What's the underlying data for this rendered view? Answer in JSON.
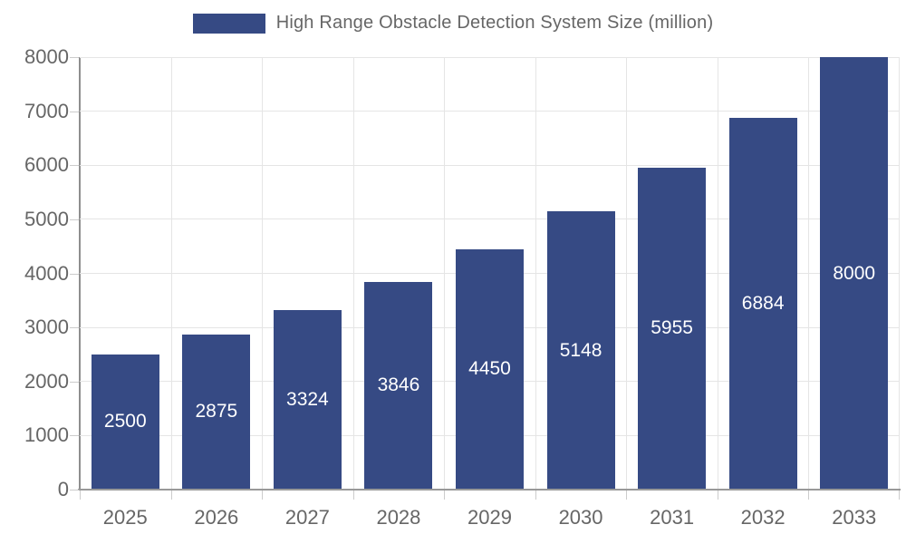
{
  "chart_data": {
    "type": "bar",
    "title": "",
    "legend": {
      "label": "High Range Obstacle Detection System Size (million)",
      "position": "top"
    },
    "categories": [
      "2025",
      "2026",
      "2027",
      "2028",
      "2029",
      "2030",
      "2031",
      "2032",
      "2033"
    ],
    "series": [
      {
        "name": "High Range Obstacle Detection System Size (million)",
        "values": [
          2500,
          2875,
          3324,
          3846,
          4450,
          5148,
          5955,
          6884,
          8000
        ]
      }
    ],
    "value_labels_visible": true,
    "xlabel": "",
    "ylabel": "",
    "ylim": [
      0,
      8000
    ],
    "yticks": [
      0,
      1000,
      2000,
      3000,
      4000,
      5000,
      6000,
      7000,
      8000
    ],
    "grid": true,
    "colors": {
      "bar": "#364A84",
      "grid": "#e5e5e5",
      "axis": "#8e8e8e",
      "tick": "#cccccc",
      "axis_label": "#666666",
      "value_label": "#ffffff",
      "legend_text": "#666666",
      "background": "#ffffff"
    }
  }
}
